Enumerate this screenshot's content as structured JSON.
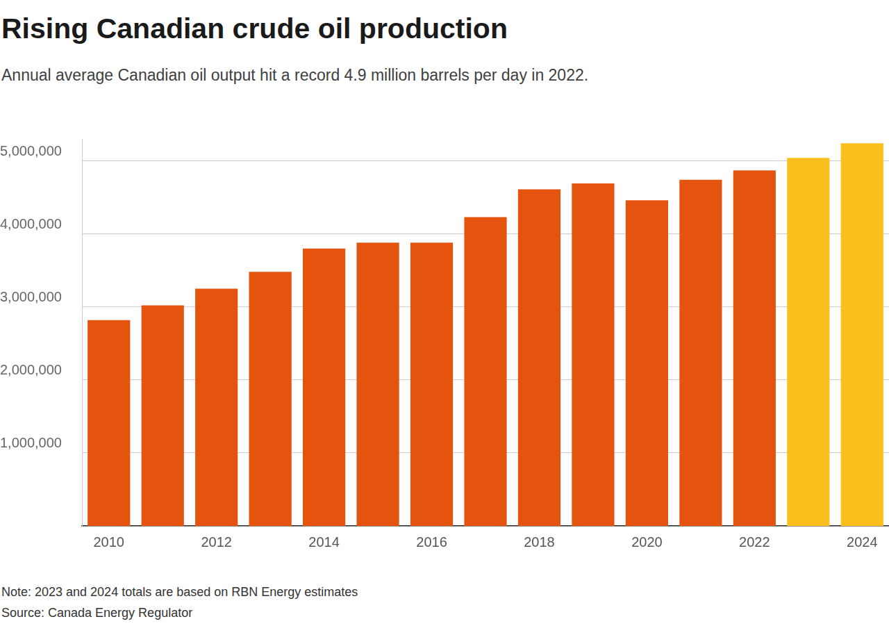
{
  "chart_data": {
    "type": "bar",
    "title": "Rising Canadian crude oil production",
    "subtitle": "Annual average Canadian oil output hit a record 4.9 million barrels per day in 2022.",
    "note": "Note: 2023 and 2024 totals are based on RBN Energy estimates",
    "source": "Source: Canada Energy Regulator",
    "categories": [
      "2010",
      null,
      "2012",
      null,
      "2014",
      null,
      "2016",
      null,
      "2018",
      null,
      "2020",
      null,
      "2022",
      null,
      "2024"
    ],
    "values": [
      2820000,
      3020000,
      3250000,
      3480000,
      3800000,
      3880000,
      3880000,
      4230000,
      4610000,
      4690000,
      4460000,
      4740000,
      4870000,
      5040000,
      5240000
    ],
    "colors": [
      "#e4540e",
      "#e4540e",
      "#e4540e",
      "#e4540e",
      "#e4540e",
      "#e4540e",
      "#e4540e",
      "#e4540e",
      "#e4540e",
      "#e4540e",
      "#e4540e",
      "#e4540e",
      "#e4540e",
      "#fbbf1d",
      "#fbbf1d"
    ],
    "ylim": [
      0,
      5300000
    ],
    "yticks": [
      {
        "value": 1000000,
        "label": "1,000,000"
      },
      {
        "value": 2000000,
        "label": "2,000,000"
      },
      {
        "value": 3000000,
        "label": "3,000,000"
      },
      {
        "value": 4000000,
        "label": "4,000,000"
      },
      {
        "value": 5000000,
        "label": "5,000,000"
      }
    ],
    "grid": true,
    "legend": false
  }
}
